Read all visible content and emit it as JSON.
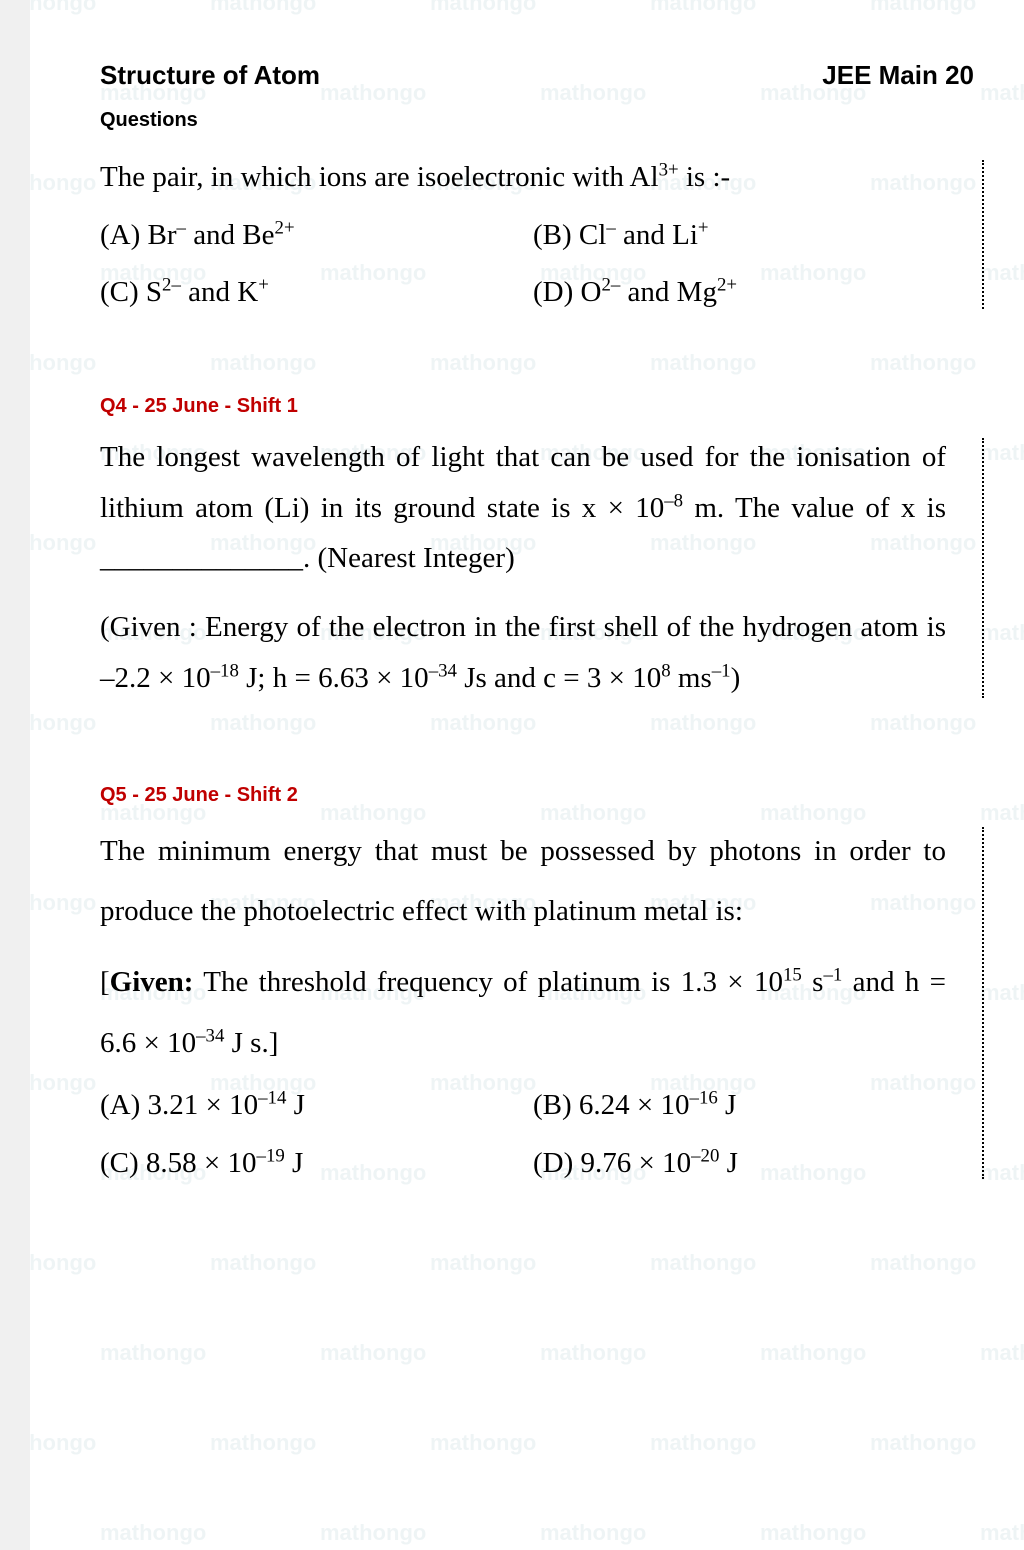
{
  "header": {
    "chapter": "Structure of Atom",
    "exam": "JEE Main 20",
    "questions_label": "Questions"
  },
  "q3": {
    "text_html": "The pair, in which ions are isoelectronic with Al<sup>3+</sup> is :-",
    "opts": {
      "a": "(A) Br<sup>–</sup> and Be<sup>2+</sup>",
      "b": "(B) Cl<sup>–</sup> and Li<sup>+</sup>",
      "c": "(C) S<sup>2–</sup> and K<sup>+</sup>",
      "d": "(D) O<sup>2–</sup> and Mg<sup>2+</sup>"
    }
  },
  "q4": {
    "label": "Q4 - 25 June - Shift 1",
    "p1_html": "The longest wavelength of light that can be used for the ionisation of lithium atom (Li) in its ground state is x × 10<sup>–8</sup> m. The value of x is ______________. (Nearest Integer)",
    "p2_html": "(Given : Energy of the electron in the first shell of the hydrogen atom is –2.2 × 10<sup>–18</sup> J; h = 6.63 × 10<sup>–34</sup> Js and c = 3 × 10<sup>8</sup> ms<sup>–1</sup>)"
  },
  "q5": {
    "label": "Q5 - 25 June - Shift 2",
    "p1": "The minimum energy that must be possessed by photons in order to produce the photoelectric effect with platinum metal is:",
    "p2_html": "[<b>Given:</b> The threshold frequency of platinum is 1.3 × 10<sup>15</sup> s<sup>–1</sup> and h = 6.6 × 10<sup>–34</sup> J s.]",
    "opts": {
      "a": "(A) 3.21 × 10<sup>–14</sup> J",
      "b": "(B) 6.24 × 10<sup>–16</sup> J",
      "c": "(C) 8.58 × 10<sup>–19</sup> J",
      "d": "(D) 9.76 × 10<sup>–20</sup> J"
    }
  },
  "watermark_text": "mathongo"
}
